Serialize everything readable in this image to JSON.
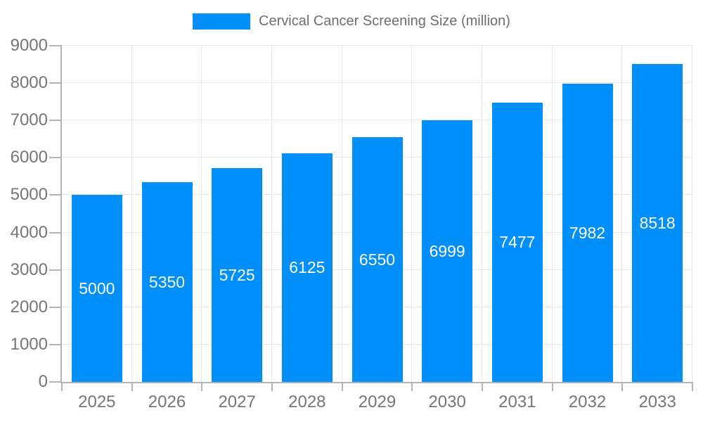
{
  "chart_data": {
    "type": "bar",
    "title": "Cervical Cancer Screening Size (million)",
    "categories": [
      "2025",
      "2026",
      "2027",
      "2028",
      "2029",
      "2030",
      "2031",
      "2032",
      "2033"
    ],
    "series": [
      {
        "name": "Cervical Cancer Screening Size (million)",
        "values": [
          5000,
          5350,
          5725,
          6125,
          6550,
          6999,
          7477,
          7982,
          8518
        ]
      }
    ],
    "xlabel": "",
    "ylabel": "",
    "ylim": [
      0,
      9000
    ],
    "ytick_step": 1000,
    "grid": true,
    "legend_position": "top",
    "value_labels_inside_bars": true,
    "colors": {
      "bar": "#008FFB",
      "value_label": "#ffffff",
      "axis_text": "#757575",
      "legend_text": "#6e6e6e",
      "grid": "#e7e7e7",
      "axis_line": "#b3b3b3"
    }
  }
}
